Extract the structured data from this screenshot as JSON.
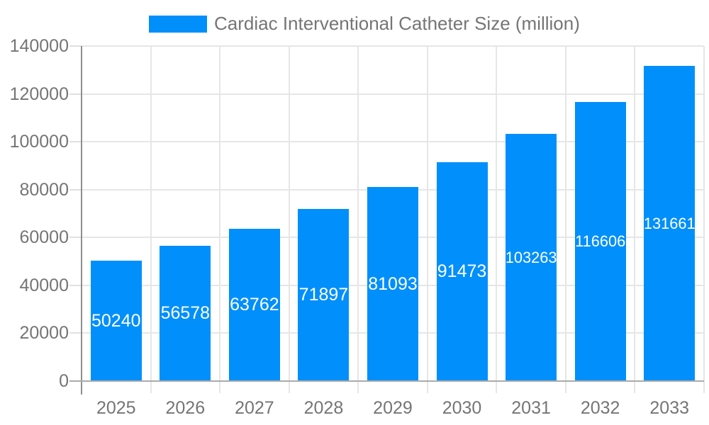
{
  "legend": {
    "series_label": "Cardiac Interventional Catheter Size (million)"
  },
  "chart_data": {
    "type": "bar",
    "title": "Cardiac Interventional Catheter Size (million)",
    "categories": [
      "2025",
      "2026",
      "2027",
      "2028",
      "2029",
      "2030",
      "2031",
      "2032",
      "2033"
    ],
    "series": [
      {
        "name": "Cardiac Interventional Catheter Size (million)",
        "values": [
          50240,
          56578,
          63762,
          71897,
          81093,
          91473,
          103263,
          116606,
          131661
        ]
      }
    ],
    "data_labels": [
      "50240",
      "56578",
      "63762",
      "71897",
      "81093",
      "91473",
      "103263",
      "116606",
      "131661"
    ],
    "xlabel": "",
    "ylabel": "",
    "ylim": [
      0,
      140000
    ],
    "y_ticks": [
      0,
      20000,
      40000,
      60000,
      80000,
      100000,
      120000,
      140000
    ],
    "grid": true,
    "legend_position": "top",
    "colors": {
      "bar": "#008FFB",
      "data_label": "#ffffff",
      "axis_label": "#757575",
      "legend_label": "#757575",
      "gridline": "#e6e6e6",
      "y_tick": "#e0e0e0",
      "x_axis_line": "#ababab",
      "y_axis_line": "#8f8f8f",
      "background": "#ffffff"
    }
  }
}
